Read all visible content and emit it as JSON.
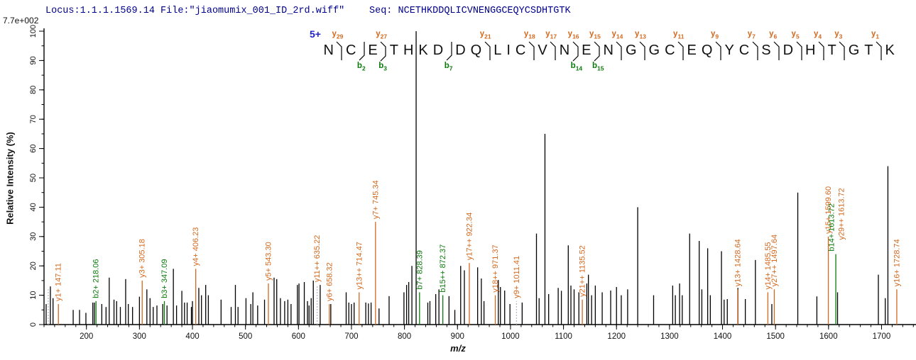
{
  "header": {
    "locus_label": "Locus:1.1.1.1569.14 File:\"jiaomumix_001_ID_2rd.wiff\"",
    "seq_label": "Seq: NCETHKDDQLICVNENGGCEQYCSDHTGTK"
  },
  "scale_text": "7.7e+002",
  "precursor_charge": "5+",
  "axes": {
    "x": {
      "label": "m/z",
      "min": 120,
      "max": 1765,
      "minor_step": 20,
      "major_ticks": [
        200,
        300,
        400,
        500,
        600,
        700,
        800,
        900,
        1000,
        1100,
        1200,
        1300,
        1400,
        1500,
        1600,
        1700
      ]
    },
    "y": {
      "label": "Relative  Intensity (%)",
      "min": 0,
      "max": 100,
      "minor_step": 5,
      "major_ticks": [
        0,
        10,
        20,
        30,
        40,
        50,
        60,
        70,
        80,
        90,
        100
      ]
    }
  },
  "colors": {
    "header": "#00008b",
    "charge": "#2020cc",
    "peak": "#000000",
    "y_ion": "#d2691e",
    "b_ion": "#0b7a0b",
    "dashed": "#b4bac8",
    "axis": "#000000"
  },
  "sequence": {
    "residues": [
      "N",
      "C",
      "E",
      "T",
      "H",
      "K",
      "D",
      "D",
      "Q",
      "L",
      "I",
      "C",
      "V",
      "N",
      "E",
      "N",
      "G",
      "G",
      "C",
      "E",
      "Q",
      "Y",
      "C",
      "S",
      "D",
      "H",
      "T",
      "G",
      "T",
      "K"
    ],
    "markers": [
      {
        "after": 1,
        "y": 29
      },
      {
        "after": 2,
        "b": 2
      },
      {
        "after": 3,
        "y": 27,
        "b": 3
      },
      {
        "after": 7,
        "b": 7
      },
      {
        "after": 9,
        "y": 21
      },
      {
        "after": 12,
        "y": 18
      },
      {
        "after": 13,
        "y": 17
      },
      {
        "after": 14,
        "y": 16,
        "b": 14
      },
      {
        "after": 15,
        "y": 15,
        "b": 15
      },
      {
        "after": 16,
        "y": 14
      },
      {
        "after": 17,
        "y": 13
      },
      {
        "after": 19,
        "y": 11
      },
      {
        "after": 21,
        "y": 9
      },
      {
        "after": 23,
        "y": 7
      },
      {
        "after": 24,
        "y": 6
      },
      {
        "after": 25,
        "y": 5
      },
      {
        "after": 26,
        "y": 4
      },
      {
        "after": 27,
        "y": 3
      },
      {
        "after": 29,
        "y": 1
      }
    ]
  },
  "chart_data": {
    "type": "bar",
    "subtype": "ms2-fragment-spectrum",
    "title": "",
    "xlabel": "m/z",
    "ylabel": "Relative  Intensity (%)",
    "xlim": [
      120,
      1765
    ],
    "ylim": [
      0,
      100
    ],
    "peaks": [
      {
        "mz": 128,
        "i": 12,
        "dashed": true
      },
      {
        "mz": 124,
        "i": 7
      },
      {
        "mz": 132,
        "i": 13
      },
      {
        "mz": 137,
        "i": 9
      },
      {
        "mz": 175,
        "i": 5
      },
      {
        "mz": 187,
        "i": 5
      },
      {
        "mz": 199,
        "i": 4
      },
      {
        "mz": 212,
        "i": 7.5
      },
      {
        "mz": 215,
        "i": 7.5
      },
      {
        "mz": 229,
        "i": 7
      },
      {
        "mz": 237,
        "i": 6
      },
      {
        "mz": 243,
        "i": 16
      },
      {
        "mz": 252,
        "i": 8.5
      },
      {
        "mz": 257,
        "i": 8
      },
      {
        "mz": 264,
        "i": 6
      },
      {
        "mz": 274,
        "i": 15.5
      },
      {
        "mz": 279,
        "i": 7
      },
      {
        "mz": 287,
        "i": 6
      },
      {
        "mz": 300,
        "i": 9.5
      },
      {
        "mz": 314,
        "i": 12
      },
      {
        "mz": 320,
        "i": 9
      },
      {
        "mz": 326,
        "i": 6
      },
      {
        "mz": 333,
        "i": 6.5
      },
      {
        "mz": 344,
        "i": 7
      },
      {
        "mz": 352,
        "i": 6.5
      },
      {
        "mz": 364,
        "i": 19
      },
      {
        "mz": 370,
        "i": 6.5
      },
      {
        "mz": 380,
        "i": 11.5
      },
      {
        "mz": 385,
        "i": 7.5
      },
      {
        "mz": 390,
        "i": 7.5
      },
      {
        "mz": 398,
        "i": 6
      },
      {
        "mz": 400,
        "i": 8
      },
      {
        "mz": 412,
        "i": 12.5
      },
      {
        "mz": 417,
        "i": 10
      },
      {
        "mz": 425,
        "i": 13.5
      },
      {
        "mz": 430,
        "i": 10
      },
      {
        "mz": 454,
        "i": 8.5
      },
      {
        "mz": 473,
        "i": 6
      },
      {
        "mz": 481,
        "i": 13.5
      },
      {
        "mz": 486,
        "i": 6
      },
      {
        "mz": 501,
        "i": 9
      },
      {
        "mz": 510,
        "i": 7
      },
      {
        "mz": 514,
        "i": 11
      },
      {
        "mz": 523,
        "i": 6.5
      },
      {
        "mz": 536,
        "i": 8.5
      },
      {
        "mz": 554,
        "i": 16
      },
      {
        "mz": 559,
        "i": 15.5
      },
      {
        "mz": 566,
        "i": 9
      },
      {
        "mz": 574,
        "i": 8
      },
      {
        "mz": 580,
        "i": 8.5
      },
      {
        "mz": 586,
        "i": 7
      },
      {
        "mz": 598,
        "i": 13.5
      },
      {
        "mz": 601,
        "i": 14
      },
      {
        "mz": 611,
        "i": 14.5
      },
      {
        "mz": 617,
        "i": 8
      },
      {
        "mz": 620,
        "i": 6.5
      },
      {
        "mz": 624,
        "i": 9
      },
      {
        "mz": 628,
        "i": 15
      },
      {
        "mz": 641,
        "i": 13.5
      },
      {
        "mz": 661,
        "i": 7
      },
      {
        "mz": 690,
        "i": 11
      },
      {
        "mz": 695,
        "i": 7.5
      },
      {
        "mz": 700,
        "i": 7
      },
      {
        "mz": 705,
        "i": 7.5
      },
      {
        "mz": 727,
        "i": 7.5
      },
      {
        "mz": 732,
        "i": 7.2
      },
      {
        "mz": 737,
        "i": 7.5
      },
      {
        "mz": 752,
        "i": 5.5
      },
      {
        "mz": 771,
        "i": 9.7
      },
      {
        "mz": 799,
        "i": 11
      },
      {
        "mz": 804,
        "i": 13.5
      },
      {
        "mz": 808,
        "i": 14.5
      },
      {
        "mz": 814,
        "i": 20
      },
      {
        "mz": 822,
        "i": 100
      },
      {
        "mz": 844,
        "i": 7.5
      },
      {
        "mz": 848,
        "i": 8
      },
      {
        "mz": 859,
        "i": 10.4
      },
      {
        "mz": 865,
        "i": 12
      },
      {
        "mz": 884,
        "i": 9.7
      },
      {
        "mz": 895,
        "i": 5
      },
      {
        "mz": 906,
        "i": 20
      },
      {
        "mz": 913,
        "i": 18.5
      },
      {
        "mz": 938,
        "i": 19.5
      },
      {
        "mz": 945,
        "i": 15.7
      },
      {
        "mz": 950,
        "i": 8
      },
      {
        "mz": 977,
        "i": 15.2
      },
      {
        "mz": 981,
        "i": 12.8
      },
      {
        "mz": 989,
        "i": 11.6
      },
      {
        "mz": 999,
        "i": 7
      },
      {
        "mz": 1022,
        "i": 7.5
      },
      {
        "mz": 1049,
        "i": 31
      },
      {
        "mz": 1054,
        "i": 9
      },
      {
        "mz": 1065,
        "i": 65
      },
      {
        "mz": 1072,
        "i": 10.4
      },
      {
        "mz": 1090,
        "i": 12.5
      },
      {
        "mz": 1096,
        "i": 11.5
      },
      {
        "mz": 1109,
        "i": 27
      },
      {
        "mz": 1114,
        "i": 13.3
      },
      {
        "mz": 1120,
        "i": 12
      },
      {
        "mz": 1129,
        "i": 11
      },
      {
        "mz": 1144,
        "i": 14
      },
      {
        "mz": 1147,
        "i": 17
      },
      {
        "mz": 1153,
        "i": 10
      },
      {
        "mz": 1160,
        "i": 13.3
      },
      {
        "mz": 1173,
        "i": 11
      },
      {
        "mz": 1189,
        "i": 11.6
      },
      {
        "mz": 1200,
        "i": 12.8
      },
      {
        "mz": 1209,
        "i": 10
      },
      {
        "mz": 1221,
        "i": 12
      },
      {
        "mz": 1240,
        "i": 40
      },
      {
        "mz": 1270,
        "i": 10
      },
      {
        "mz": 1306,
        "i": 13.3
      },
      {
        "mz": 1311,
        "i": 10
      },
      {
        "mz": 1319,
        "i": 14
      },
      {
        "mz": 1324,
        "i": 10
      },
      {
        "mz": 1338,
        "i": 31
      },
      {
        "mz": 1356,
        "i": 28.5
      },
      {
        "mz": 1361,
        "i": 12
      },
      {
        "mz": 1372,
        "i": 26
      },
      {
        "mz": 1377,
        "i": 10
      },
      {
        "mz": 1398,
        "i": 25
      },
      {
        "mz": 1403,
        "i": 8.5
      },
      {
        "mz": 1409,
        "i": 8.7
      },
      {
        "mz": 1429,
        "i": 12.5
      },
      {
        "mz": 1443,
        "i": 8.7
      },
      {
        "mz": 1462,
        "i": 22
      },
      {
        "mz": 1493,
        "i": 7
      },
      {
        "mz": 1542,
        "i": 45
      },
      {
        "mz": 1578,
        "i": 9.6
      },
      {
        "mz": 1617,
        "i": 11
      },
      {
        "mz": 1694,
        "i": 17
      },
      {
        "mz": 1707,
        "i": 9
      },
      {
        "mz": 1712,
        "i": 54
      }
    ],
    "ions": [
      {
        "label": "y1+ 147.11",
        "mz": 147.11,
        "i": 7,
        "type": "y"
      },
      {
        "label": "b2+ 218.06",
        "mz": 218.06,
        "i": 8,
        "type": "b"
      },
      {
        "label": "y3+ 305.18",
        "mz": 305.18,
        "i": 15,
        "type": "y"
      },
      {
        "label": "b3+ 347.09",
        "mz": 347.09,
        "i": 8,
        "type": "b"
      },
      {
        "label": "y4+ 406.23",
        "mz": 406.23,
        "i": 19,
        "type": "y"
      },
      {
        "label": "y5+ 543.30",
        "mz": 543.3,
        "i": 14,
        "type": "y"
      },
      {
        "label": "y11++ 635.22",
        "mz": 635.22,
        "i": 13.5,
        "type": "y",
        "dashed": true
      },
      {
        "label": "y6+ 658.32",
        "mz": 658.32,
        "i": 7,
        "type": "y"
      },
      {
        "label": "y13++ 714.47",
        "mz": 714.47,
        "i": 11,
        "type": "y"
      },
      {
        "label": "y7+ 745.34",
        "mz": 745.34,
        "i": 35,
        "type": "y"
      },
      {
        "label": "b7+ 828.39",
        "mz": 828.39,
        "i": 11,
        "type": "b"
      },
      {
        "label": "b15++ 872.37",
        "mz": 872.37,
        "i": 10,
        "type": "b"
      },
      {
        "label": "y17++ 922.34",
        "mz": 922.34,
        "i": 21,
        "type": "y"
      },
      {
        "label": "y18++ 971.37",
        "mz": 971.37,
        "i": 10,
        "type": "y"
      },
      {
        "label": "y9+ 1011.41",
        "mz": 1011.41,
        "i": 8,
        "type": "y",
        "dashed": true
      },
      {
        "label": "y21++ 1135.52",
        "mz": 1135.52,
        "i": 8.5,
        "type": "y"
      },
      {
        "label": "y13+ 1428.64",
        "mz": 1428.64,
        "i": 12,
        "type": "y"
      },
      {
        "label": "y14+ 1485.55",
        "mz": 1485.55,
        "i": 11,
        "type": "y"
      },
      {
        "label": "y27++ 1497.64",
        "mz": 1497.64,
        "i": 12,
        "type": "y"
      },
      {
        "label": "y15+ 1599.60",
        "mz": 1599.6,
        "i": 30,
        "type": "y"
      },
      {
        "label": "y29++ 1613.72",
        "mz": 1613.72,
        "i": 24,
        "type": "y",
        "line": false,
        "dx": 8,
        "lift": 16
      },
      {
        "label": "b14+ 1613.72",
        "mz": 1613.72,
        "i": 24,
        "type": "b",
        "dx": -6
      },
      {
        "label": "y16+ 1728.74",
        "mz": 1728.74,
        "i": 12,
        "type": "y"
      }
    ]
  }
}
